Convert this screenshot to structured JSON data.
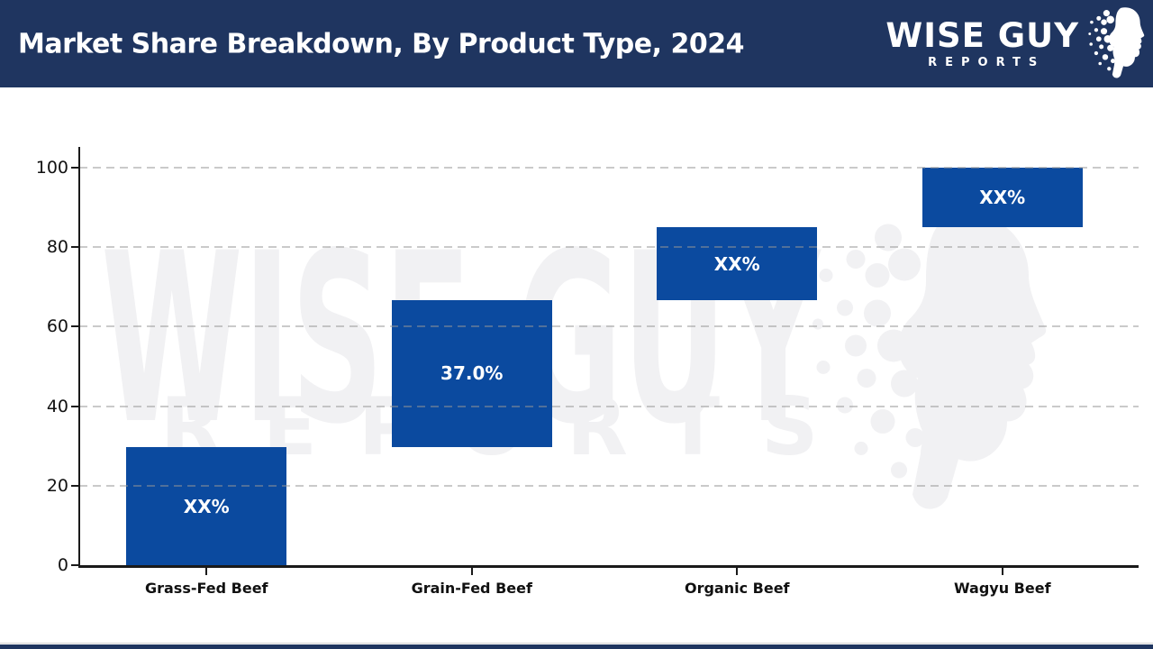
{
  "header": {
    "title": "Market Share Breakdown, By Product Type, 2024",
    "logo": {
      "line1": "WISE GUY",
      "line2": "REPORTS"
    }
  },
  "watermark": {
    "line1": "WISE GUY",
    "line2": "REPORTS"
  },
  "chart_data": {
    "type": "bar",
    "variant": "waterfall",
    "title": "Market Share Breakdown, By Product Type, 2024",
    "xlabel": "",
    "ylabel": "",
    "ylim": [
      0,
      100
    ],
    "yticks": [
      0,
      20,
      40,
      60,
      80,
      100
    ],
    "grid": "horizontal-dashed",
    "legend": "none",
    "bar_color": "#0b4a9f",
    "categories": [
      "Grass-Fed Beef",
      "Grain-Fed Beef",
      "Organic Beef",
      "Wagyu Beef"
    ],
    "segments": [
      {
        "category": "Grass-Fed Beef",
        "start": 0,
        "end": 29.7,
        "label": "XX%"
      },
      {
        "category": "Grain-Fed Beef",
        "start": 29.7,
        "end": 66.7,
        "label": "37.0%",
        "value": 37.0
      },
      {
        "category": "Organic Beef",
        "start": 66.7,
        "end": 85.0,
        "label": "XX%"
      },
      {
        "category": "Wagyu Beef",
        "start": 85.0,
        "end": 100.0,
        "label": "XX%"
      }
    ]
  },
  "colors": {
    "header_bg": "#1f3560",
    "bar": "#0b4a9f",
    "axis": "#1a1a1a",
    "watermark": "#f1f1f3",
    "grid": "#c9c9c9"
  }
}
